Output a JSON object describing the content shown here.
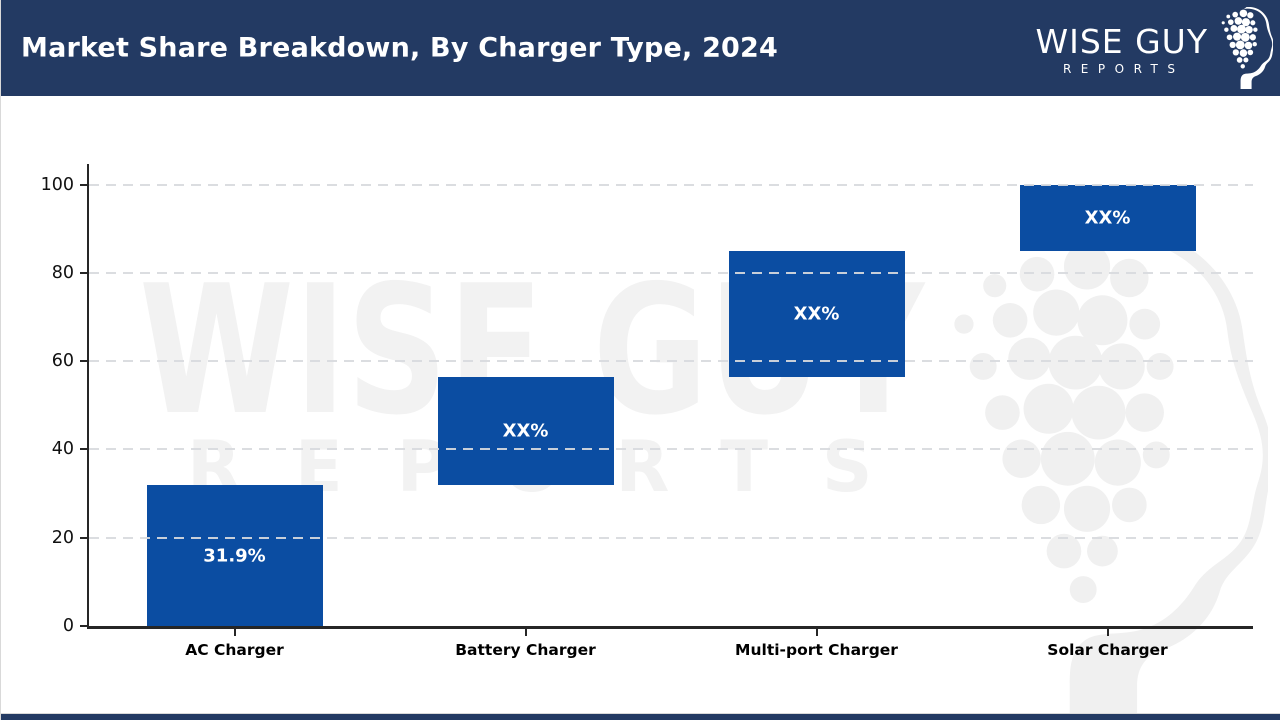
{
  "header": {
    "title": "Market Share Breakdown, By Charger Type, 2024",
    "logo": {
      "wordmark": "WISE GUY",
      "subtext": "REPORTS"
    }
  },
  "watermark": {
    "wordmark": "WISE GUY",
    "subtext": "REPORTS"
  },
  "footer": {},
  "chart_data": {
    "type": "bar",
    "subtype": "waterfall",
    "title": "Market Share Breakdown, By Charger Type, 2024",
    "categories": [
      "AC Charger",
      "Battery Charger",
      "Multi-port Charger",
      "Solar Charger"
    ],
    "segments": [
      {
        "category": "AC Charger",
        "start": 0,
        "end": 31.9,
        "label": "31.9%"
      },
      {
        "category": "Battery Charger",
        "start": 31.9,
        "end": 56.5,
        "label": "XX%"
      },
      {
        "category": "Multi-port Charger",
        "start": 56.5,
        "end": 85.0,
        "label": "XX%"
      },
      {
        "category": "Solar Charger",
        "start": 85.0,
        "end": 100.0,
        "label": "XX%"
      }
    ],
    "yticks": [
      0,
      20,
      40,
      60,
      80,
      100
    ],
    "ylim": [
      0,
      105
    ],
    "xlabel": "",
    "ylabel": "",
    "grid": "dashed-horizontal",
    "legend": "none"
  },
  "colors": {
    "header_bg": "#233a63",
    "footer_bg": "#233a63",
    "bar": "#0b4da2",
    "bar_label": "#ffffff",
    "grid": "#d8dade",
    "axis": "#262626",
    "watermark": "#f2f2f2",
    "title_text": "#ffffff"
  }
}
